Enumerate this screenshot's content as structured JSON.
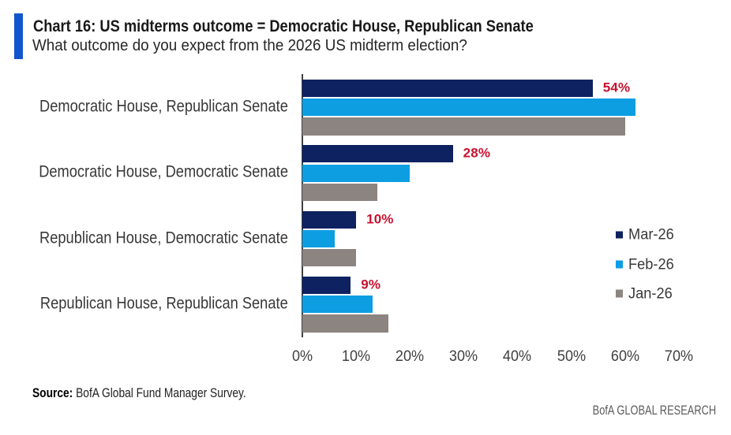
{
  "header": {
    "title": "Chart 16: US midterms outcome = Democratic House, Republican Senate",
    "subtitle": "What outcome do you expect from the 2026 US midterm election?",
    "accent_color": "#1155cc"
  },
  "chart_data": {
    "type": "bar",
    "orientation": "horizontal",
    "title": "Chart 16: US midterms outcome = Democratic House, Republican Senate",
    "subtitle": "What outcome do you expect from the 2026 US midterm election?",
    "categories": [
      "Democratic House, Republican Senate",
      "Democratic House, Democratic Senate",
      "Republican House, Democratic Senate",
      "Republican House, Republican Senate"
    ],
    "series": [
      {
        "name": "Mar-26",
        "color": "#0e2161",
        "values": [
          54,
          28,
          10,
          9
        ],
        "data_labels": [
          "54%",
          "28%",
          "10%",
          "9%"
        ]
      },
      {
        "name": "Feb-26",
        "color": "#0d9ee1",
        "values": [
          62,
          20,
          6,
          13
        ],
        "data_labels": null
      },
      {
        "name": "Jan-26",
        "color": "#8c8480",
        "values": [
          60,
          14,
          10,
          16
        ],
        "data_labels": null
      }
    ],
    "xlabel": "",
    "ylabel": "",
    "xlim": [
      0,
      70
    ],
    "x_ticks": [
      "0%",
      "10%",
      "20%",
      "30%",
      "40%",
      "50%",
      "60%",
      "70%"
    ],
    "grid": false,
    "legend_position": "right",
    "data_label_color": "#c8102e",
    "axis_color": "#404040"
  },
  "footer": {
    "source_label": "Source:",
    "source_text": " BofA Global Fund Manager Survey.",
    "branding": "BofA GLOBAL RESEARCH"
  }
}
